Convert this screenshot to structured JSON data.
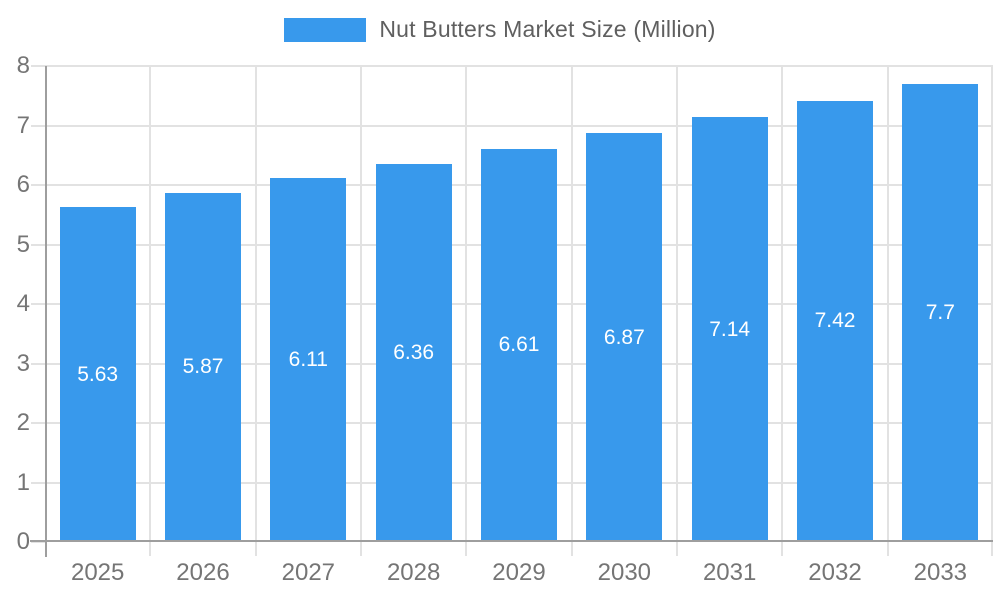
{
  "chart_data": {
    "type": "bar",
    "title": "Nut Butters Market Size (Million)",
    "categories": [
      "2025",
      "2026",
      "2027",
      "2028",
      "2029",
      "2030",
      "2031",
      "2032",
      "2033"
    ],
    "values": [
      5.63,
      5.87,
      6.11,
      6.36,
      6.61,
      6.87,
      7.14,
      7.42,
      7.7
    ],
    "series": [
      {
        "name": "Nut Butters Market Size (Million)",
        "values": [
          5.63,
          5.87,
          6.11,
          6.36,
          6.61,
          6.87,
          7.14,
          7.42,
          7.7
        ]
      }
    ],
    "xlabel": "",
    "ylabel": "",
    "ylim": [
      0,
      8
    ],
    "y_ticks": [
      0,
      1,
      2,
      3,
      4,
      5,
      6,
      7,
      8
    ],
    "grid": true,
    "legend_position": "top",
    "value_label_position": "inside-center"
  },
  "colors": {
    "bar": "#3899EC",
    "gridline": "#e2e2e2",
    "axis": "#9e9e9e",
    "axis_label": "#757575",
    "legend_text": "#5f5f5f",
    "bar_label": "#ffffff",
    "background": "#ffffff"
  }
}
